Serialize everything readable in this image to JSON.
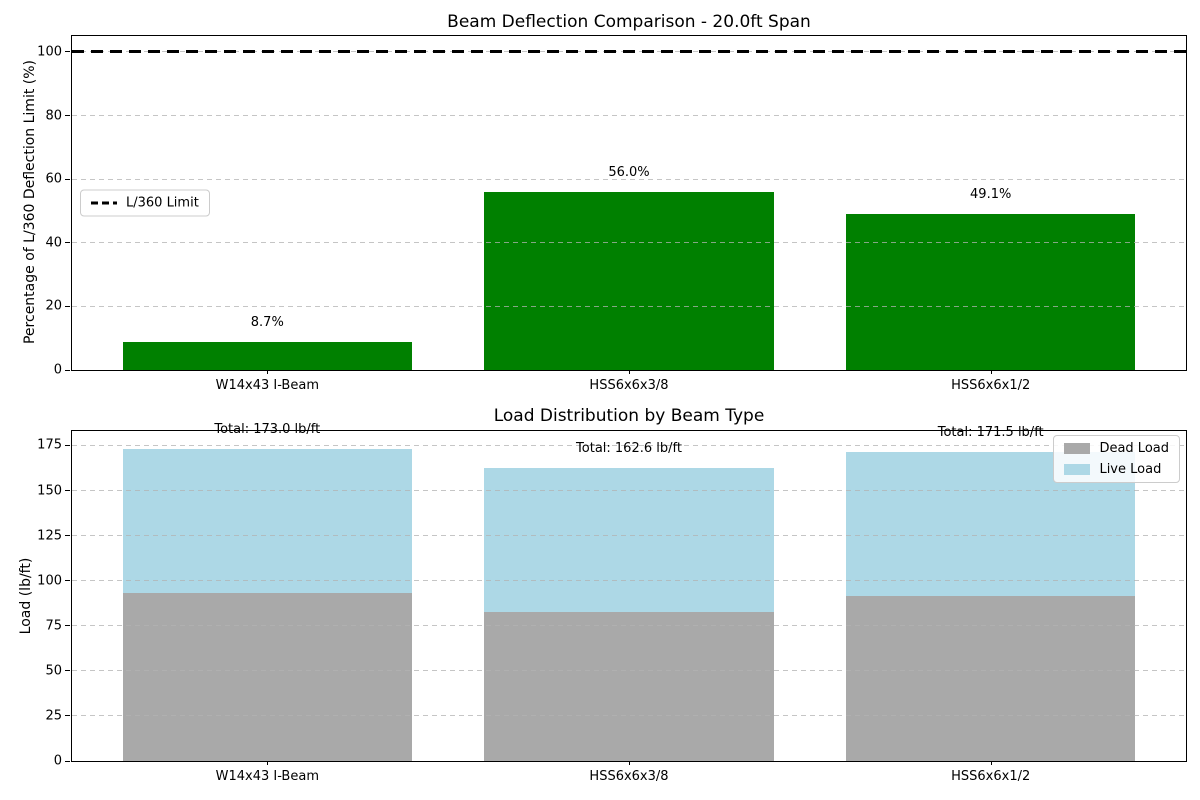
{
  "chart_data": [
    {
      "type": "bar",
      "title": "Beam Deflection Comparison - 20.0ft Span",
      "ylabel": "Percentage of L/360 Deflection Limit (%)",
      "xlabel": "",
      "categories": [
        "W14x43 I-Beam",
        "HSS6x6x3/8",
        "HSS6x6x1/2"
      ],
      "values": [
        8.7,
        56.0,
        49.1
      ],
      "bar_labels": [
        "8.7%",
        "56.0%",
        "49.1%"
      ],
      "bar_color": "#008000",
      "ylim": [
        0,
        105
      ],
      "yticks": [
        0,
        20,
        40,
        60,
        80,
        100
      ],
      "ytick_labels": [
        "0",
        "20",
        "40",
        "60",
        "80",
        "100"
      ],
      "grid": true,
      "limit_line": {
        "y": 100,
        "style": "dashed",
        "color": "#000000",
        "label": "L/360 Limit"
      },
      "legend": {
        "position": "center-left",
        "items": [
          {
            "label": "L/360 Limit",
            "swatch": "dashed-line",
            "color": "#000000"
          }
        ]
      }
    },
    {
      "type": "bar-stacked",
      "title": "Load Distribution by Beam Type",
      "ylabel": "Load (lb/ft)",
      "xlabel": "",
      "categories": [
        "W14x43 I-Beam",
        "HSS6x6x3/8",
        "HSS6x6x1/2"
      ],
      "series": [
        {
          "name": "Dead Load",
          "color": "#a9a9a9",
          "values": [
            93.0,
            82.6,
            91.5
          ]
        },
        {
          "name": "Live Load",
          "color": "#add8e6",
          "values": [
            80.0,
            80.0,
            80.0
          ]
        }
      ],
      "totals": [
        173.0,
        162.6,
        171.5
      ],
      "bar_labels": [
        "Total: 173.0 lb/ft",
        "Total: 162.6 lb/ft",
        "Total: 171.5 lb/ft"
      ],
      "ylim": [
        0,
        183
      ],
      "yticks": [
        0,
        25,
        50,
        75,
        100,
        125,
        150,
        175
      ],
      "ytick_labels": [
        "0",
        "25",
        "50",
        "75",
        "100",
        "125",
        "150",
        "175"
      ],
      "grid": true,
      "legend": {
        "position": "top-right",
        "items": [
          {
            "label": "Dead Load",
            "swatch": "box",
            "color": "#a9a9a9"
          },
          {
            "label": "Live Load",
            "swatch": "box",
            "color": "#add8e6"
          }
        ]
      }
    }
  ]
}
